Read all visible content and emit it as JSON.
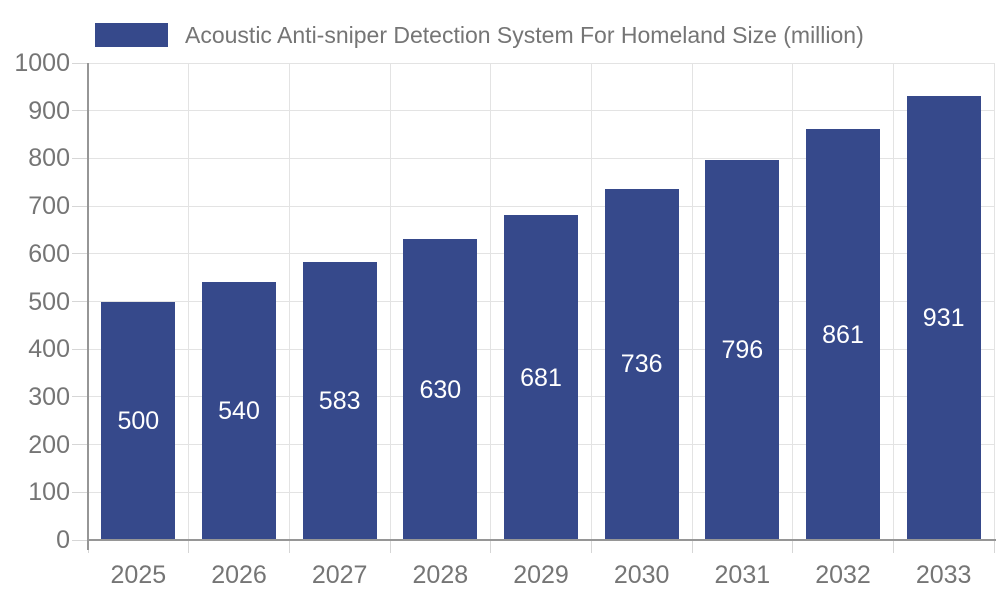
{
  "chart_data": {
    "type": "bar",
    "title": "",
    "legend": {
      "position": "top-left",
      "entries": [
        {
          "label": "Acoustic Anti-sniper Detection System For Homeland Size (million)"
        }
      ]
    },
    "categories": [
      "2025",
      "2026",
      "2027",
      "2028",
      "2029",
      "2030",
      "2031",
      "2032",
      "2033"
    ],
    "series": [
      {
        "name": "Acoustic Anti-sniper Detection System For Homeland Size (million)",
        "values": [
          500,
          540,
          583,
          630,
          681,
          736,
          796,
          861,
          931
        ]
      }
    ],
    "value_labels_shown": true,
    "xlabel": "",
    "ylabel": "",
    "ylim": [
      0,
      1000
    ],
    "ytick_interval": 100,
    "yticks": [
      "0",
      "100",
      "200",
      "300",
      "400",
      "500",
      "600",
      "700",
      "800",
      "900",
      "1000"
    ],
    "grid": true,
    "colors": {
      "bar": "#36498B",
      "value_label": "#FFFFFF",
      "axis_text": "#757575",
      "grid_line": "#E3E3E3",
      "axis_line": "#969696",
      "tick": "#D6D6D6",
      "background": "#FFFFFF"
    }
  }
}
